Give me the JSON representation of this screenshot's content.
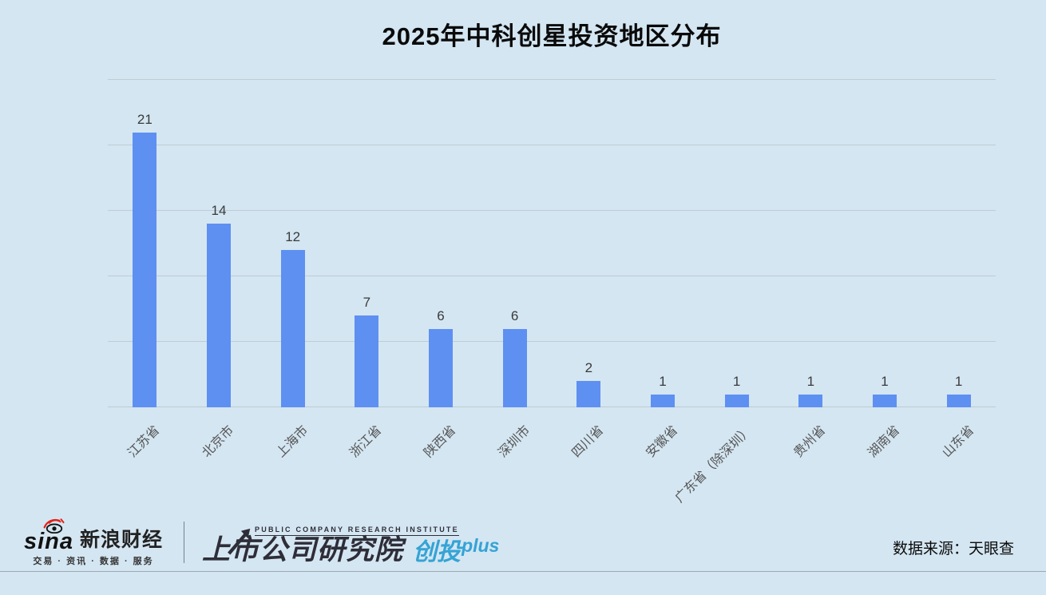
{
  "page": {
    "title": "2025年中科创星投资地区分布"
  },
  "chart_data": {
    "type": "bar",
    "title": "2025年中科创星投资地区分布",
    "categories": [
      "江苏省",
      "北京市",
      "上海市",
      "浙江省",
      "陕西省",
      "深圳市",
      "四川省",
      "安徽省",
      "广东省（除深圳）",
      "贵州省",
      "湖南省",
      "山东省"
    ],
    "values": [
      21,
      14,
      12,
      7,
      6,
      6,
      2,
      1,
      1,
      1,
      1,
      1
    ],
    "xlabel": "",
    "ylabel": "",
    "ylim": [
      0,
      25
    ],
    "grid_step": 5,
    "grid": true,
    "legend_position": "none",
    "value_labels_shown": true,
    "x_label_rotation": 45
  },
  "footer": {
    "sina_brand": "sina",
    "sina_name": "新浪财经",
    "sina_tagline": "交易 · 资讯 · 数据 · 服务",
    "institute_en": "PUBLIC COMPANY RESEARCH INSTITUTE",
    "institute_cn": "上市公司研究院",
    "sub_brand": "创投",
    "sub_brand_suffix": "plus",
    "source": "数据来源：天眼查"
  },
  "colors": {
    "background": "#D4E6F2",
    "bar": "#5E90F2",
    "value_label": "#3a3a3a",
    "axis_label": "#565656",
    "accent_cyan": "#35A3D5",
    "logo_dark": "#2E2E38",
    "sina_red": "#E2231A"
  }
}
